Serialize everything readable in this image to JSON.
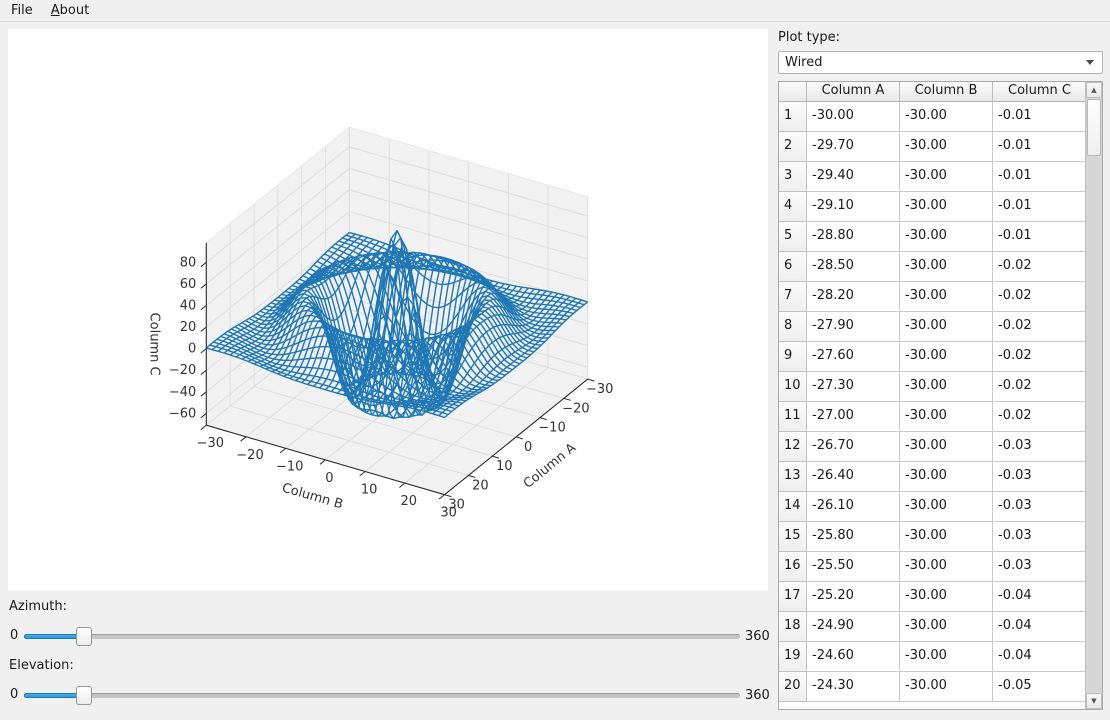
{
  "menu": {
    "items": [
      {
        "label": "File"
      },
      {
        "label": "About",
        "underline_index": 0
      }
    ]
  },
  "plot": {
    "xlabel": "Column A",
    "ylabel": "Column B",
    "zlabel": "Column C",
    "x_ticks": [
      -30,
      -20,
      -10,
      0,
      10,
      20,
      30
    ],
    "y_ticks": [
      -30,
      -20,
      -10,
      0,
      10,
      20,
      30
    ],
    "z_ticks": [
      -60,
      -40,
      -20,
      0,
      20,
      40,
      60,
      80
    ],
    "xlim": [
      -30,
      30
    ],
    "ylim": [
      -30,
      30
    ],
    "zlim": [
      -71,
      98
    ],
    "view": {
      "azim": 30,
      "elev": 30
    },
    "surface": {
      "type": "wireframe",
      "amplitude": 88,
      "wave_k": 0.3,
      "gauss_sigma": 18.6,
      "grid_min": -30,
      "grid_max": 30,
      "grid_step": 1.5
    },
    "colors": {
      "wire": "#1f77b4",
      "pane": "#f1f1f1",
      "pane_edge": "#e7e7e7",
      "grid": "#dcdcdc",
      "spine": "#2e2e2e",
      "text": "#333333"
    }
  },
  "controls": {
    "azimuth": {
      "label": "Azimuth:",
      "min": 0,
      "max": 360,
      "value": 30,
      "min_label": "0",
      "max_label": "360"
    },
    "elevation": {
      "label": "Elevation:",
      "min": 0,
      "max": 360,
      "value": 30,
      "min_label": "0",
      "max_label": "360"
    }
  },
  "panel": {
    "plot_type_label": "Plot type:",
    "plot_type_value": "Wired",
    "table": {
      "headers": [
        "",
        "Column A",
        "Column B",
        "Column C"
      ],
      "rows": [
        [
          "1",
          "-30.00",
          "-30.00",
          "-0.01"
        ],
        [
          "2",
          "-29.70",
          "-30.00",
          "-0.01"
        ],
        [
          "3",
          "-29.40",
          "-30.00",
          "-0.01"
        ],
        [
          "4",
          "-29.10",
          "-30.00",
          "-0.01"
        ],
        [
          "5",
          "-28.80",
          "-30.00",
          "-0.01"
        ],
        [
          "6",
          "-28.50",
          "-30.00",
          "-0.02"
        ],
        [
          "7",
          "-28.20",
          "-30.00",
          "-0.02"
        ],
        [
          "8",
          "-27.90",
          "-30.00",
          "-0.02"
        ],
        [
          "9",
          "-27.60",
          "-30.00",
          "-0.02"
        ],
        [
          "10",
          "-27.30",
          "-30.00",
          "-0.02"
        ],
        [
          "11",
          "-27.00",
          "-30.00",
          "-0.02"
        ],
        [
          "12",
          "-26.70",
          "-30.00",
          "-0.03"
        ],
        [
          "13",
          "-26.40",
          "-30.00",
          "-0.03"
        ],
        [
          "14",
          "-26.10",
          "-30.00",
          "-0.03"
        ],
        [
          "15",
          "-25.80",
          "-30.00",
          "-0.03"
        ],
        [
          "16",
          "-25.50",
          "-30.00",
          "-0.03"
        ],
        [
          "17",
          "-25.20",
          "-30.00",
          "-0.04"
        ],
        [
          "18",
          "-24.90",
          "-30.00",
          "-0.04"
        ],
        [
          "19",
          "-24.60",
          "-30.00",
          "-0.04"
        ],
        [
          "20",
          "-24.30",
          "-30.00",
          "-0.05"
        ]
      ]
    },
    "scrollbar": {
      "up_glyph": "▲",
      "down_glyph": "▼"
    }
  }
}
